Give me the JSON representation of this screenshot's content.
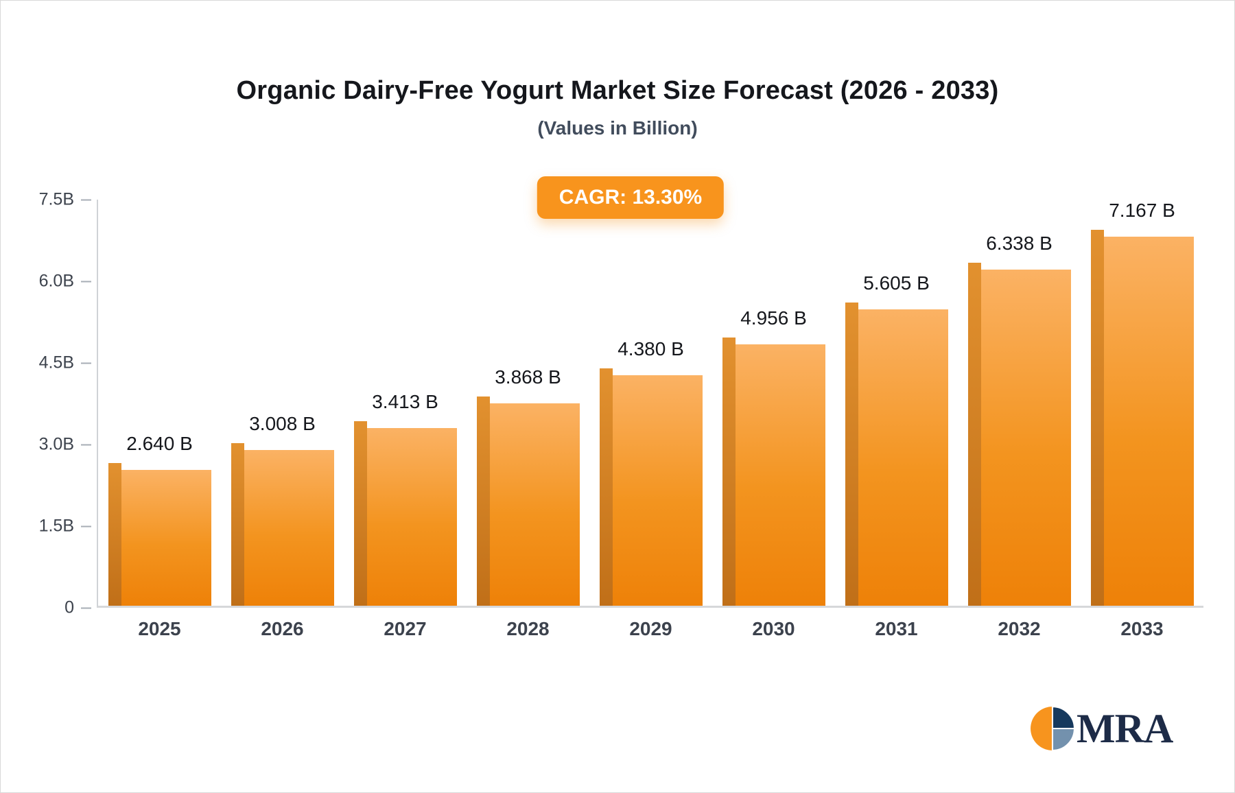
{
  "header": {
    "title": "Organic Dairy-Free Yogurt Market Size Forecast (2026 - 2033)",
    "subtitle": "(Values in Billion)"
  },
  "badge": {
    "label": "CAGR: 13.30%",
    "color": "#f8941d"
  },
  "chart_data": {
    "type": "bar",
    "title": "Organic Dairy-Free Yogurt Market Size Forecast (2026 - 2033)",
    "subtitle": "(Values in Billion)",
    "categories": [
      "2025",
      "2026",
      "2027",
      "2028",
      "2029",
      "2030",
      "2031",
      "2032",
      "2033"
    ],
    "values": [
      2.64,
      3.008,
      3.413,
      3.868,
      4.38,
      4.956,
      5.605,
      6.338,
      7.167
    ],
    "value_labels": [
      "2.640 B",
      "3.008 B",
      "3.413 B",
      "3.868 B",
      "4.380 B",
      "4.956 B",
      "5.605 B",
      "6.338 B",
      "7.167 B"
    ],
    "xlabel": "",
    "ylabel": "",
    "ylim": [
      0,
      7.5
    ],
    "yticks": [
      "7.5B",
      "6.0B",
      "4.5B",
      "3.0B",
      "1.5B",
      "0"
    ],
    "grid": false,
    "legend": false,
    "bar_colors": {
      "front_top": "#fbb264",
      "front_bottom": "#ee8108",
      "side": "#c06f18"
    }
  },
  "logo": {
    "text": "MRA",
    "pie_colors": [
      "#f7941e",
      "#16395d",
      "#7391ad"
    ]
  }
}
